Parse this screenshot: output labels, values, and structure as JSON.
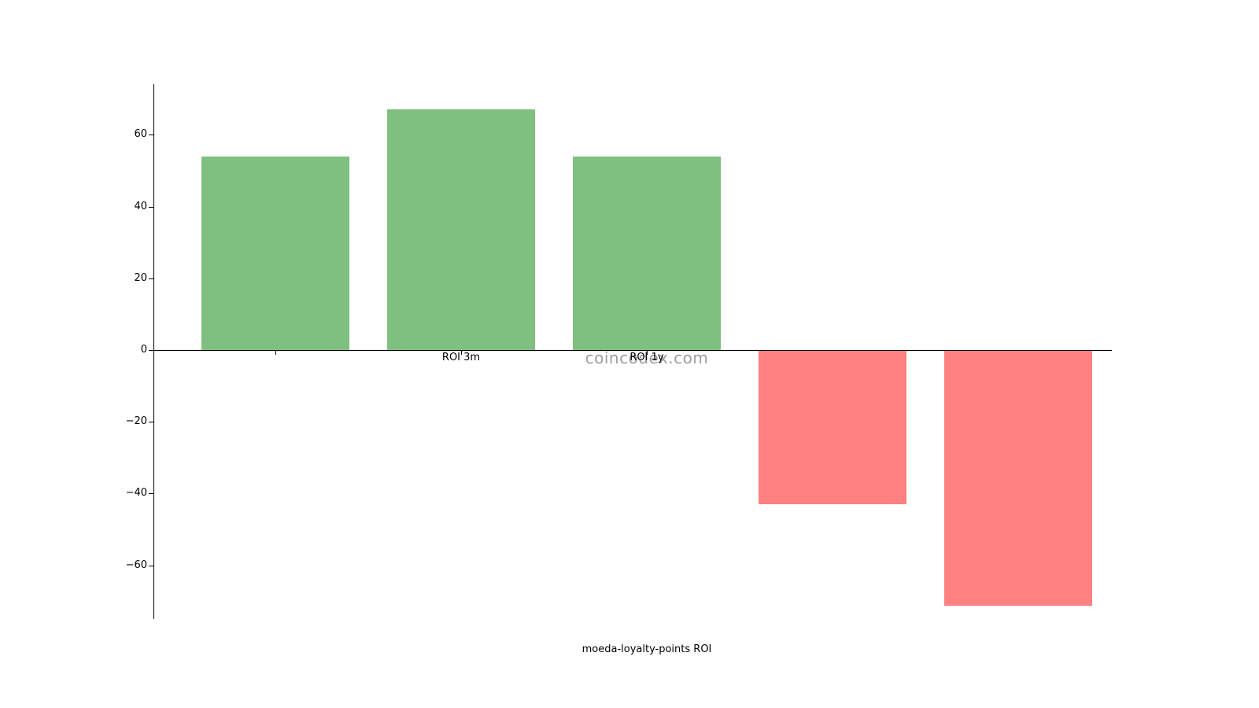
{
  "chart_data": {
    "type": "bar",
    "title": "moeda-loyalty-points ROI",
    "watermark": "coincodex.com",
    "categories": [
      "",
      "ROI 3m",
      "ROI 1y",
      "",
      ""
    ],
    "values": [
      54,
      67,
      54,
      -43,
      -71.3
    ],
    "colors": {
      "positive": "#7fbf7f",
      "negative": "#ff8080"
    },
    "yticks": [
      {
        "label": "60",
        "value": 60
      },
      {
        "label": "40",
        "value": 40
      },
      {
        "label": "20",
        "value": 20
      },
      {
        "label": "0",
        "value": 0
      },
      {
        "label": "−20",
        "value": -20
      },
      {
        "label": "−40",
        "value": -40
      },
      {
        "label": "−60",
        "value": -60
      }
    ],
    "ylim": [
      -75,
      74
    ],
    "xlabel": "",
    "ylabel": "",
    "grid": false,
    "legend_position": "none",
    "axis_color": "#000000",
    "text_color": "#000000",
    "watermark_color": "#8c8c8c",
    "background_color": "#ffffff"
  }
}
